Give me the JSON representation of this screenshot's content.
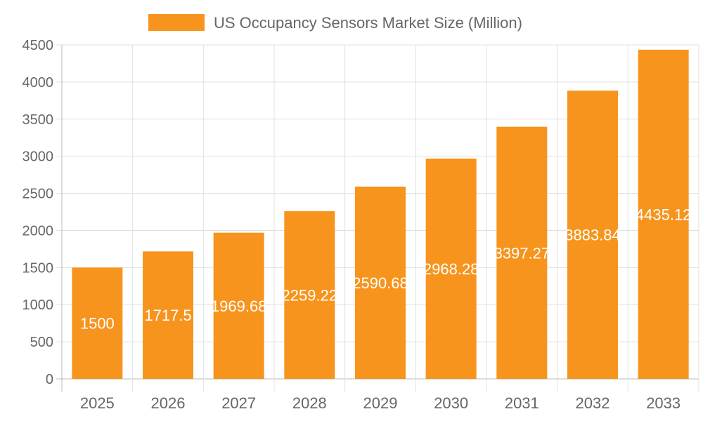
{
  "chart_data": {
    "type": "bar",
    "title": "",
    "legend": {
      "position": "top",
      "entries": [
        "US Occupancy Sensors Market Size (Million)"
      ]
    },
    "categories": [
      "2025",
      "2026",
      "2027",
      "2028",
      "2029",
      "2030",
      "2031",
      "2032",
      "2033"
    ],
    "series": [
      {
        "name": "US Occupancy Sensors Market Size (Million)",
        "values": [
          1500,
          1717.5,
          1969.68,
          2259.22,
          2590.68,
          2968.28,
          3397.27,
          3883.84,
          4435.12
        ],
        "color": "#f7941d"
      }
    ],
    "data_labels": [
      "1500",
      "1717.5",
      "1969.68",
      "2259.22",
      "2590.68",
      "2968.28",
      "3397.27",
      "3883.84",
      "4435.12"
    ],
    "ylim": [
      0,
      4500
    ],
    "yticks": [
      "0",
      "500",
      "1000",
      "1500",
      "2000",
      "2500",
      "3000",
      "3500",
      "4000",
      "4500"
    ],
    "grid": true,
    "xlabel": "",
    "ylabel": ""
  }
}
